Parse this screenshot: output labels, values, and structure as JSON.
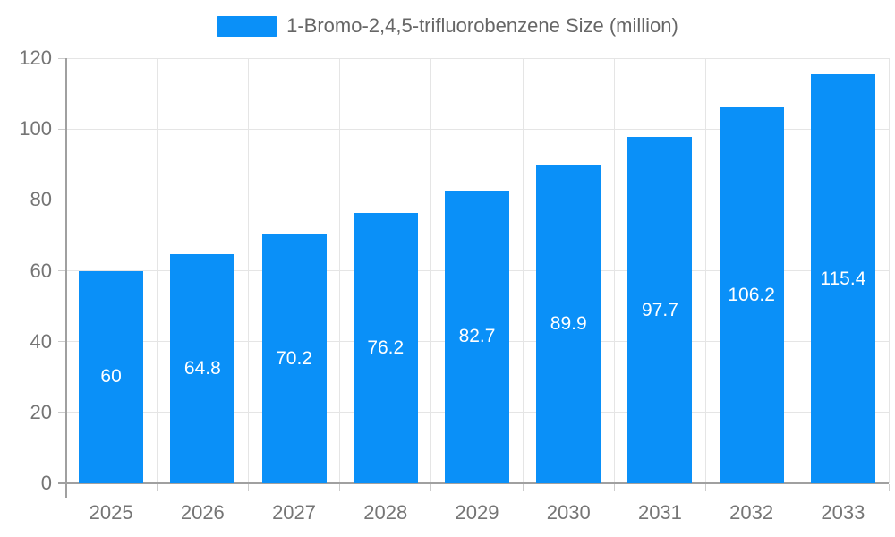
{
  "chart_data": {
    "type": "bar",
    "title": "",
    "legend_label": "1-Bromo-2,4,5-trifluorobenzene Size (million)",
    "categories": [
      "2025",
      "2026",
      "2027",
      "2028",
      "2029",
      "2030",
      "2031",
      "2032",
      "2033"
    ],
    "values": [
      60,
      64.8,
      70.2,
      76.2,
      82.7,
      89.9,
      97.7,
      106.2,
      115.4
    ],
    "xlabel": "",
    "ylabel": "",
    "ylim": [
      0,
      120
    ],
    "y_ticks": [
      0,
      20,
      40,
      60,
      80,
      100,
      120
    ],
    "grid": true,
    "legend_position": "top-center",
    "colors": {
      "bar": "#0a90f8",
      "grid": "#e5e5e5",
      "axis": "#a0a0a0",
      "tick": "#cccccc",
      "axis_text": "#757575",
      "legend_text": "#666666",
      "value_text": "#ffffff",
      "background": "#ffffff"
    }
  }
}
